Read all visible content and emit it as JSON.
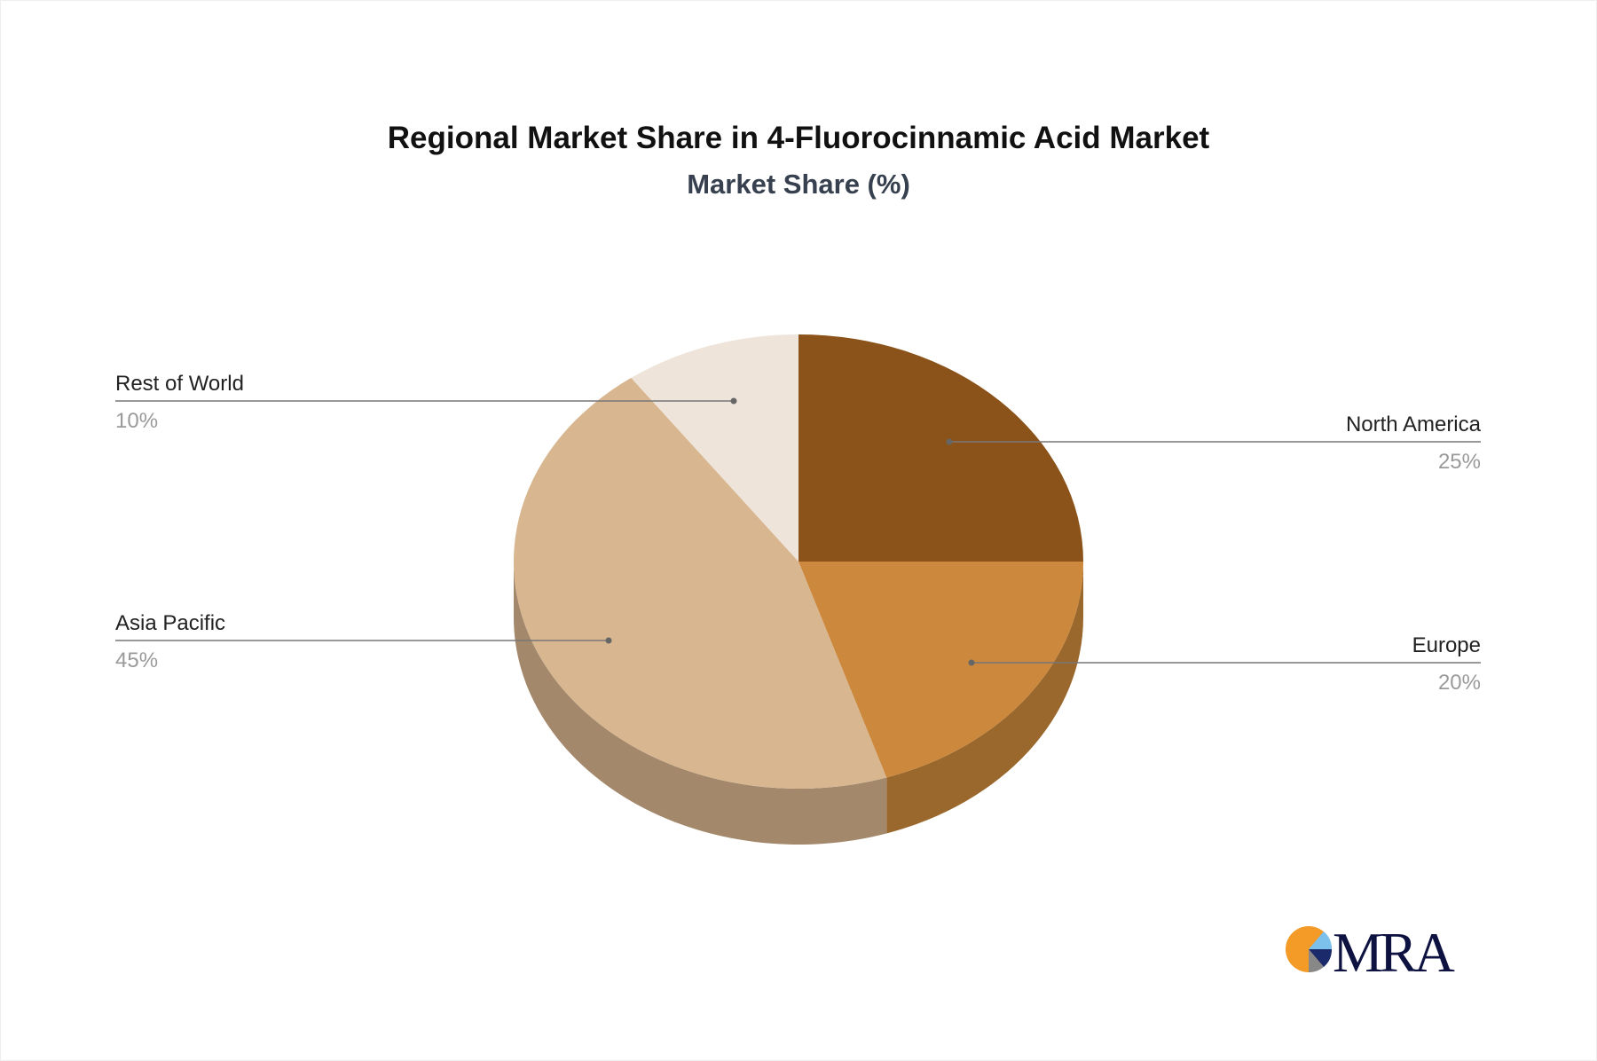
{
  "chart_data": {
    "type": "pie",
    "style": "3d",
    "title": "Regional Market Share in 4-Fluorocinnamic Acid Market",
    "subtitle": "Market Share (%)",
    "slices": [
      {
        "label": "North America",
        "value": 25,
        "display": "25%",
        "color": "#8B531A",
        "side_color": "#6E4214"
      },
      {
        "label": "Europe",
        "value": 20,
        "display": "20%",
        "color": "#CC893D",
        "side_color": "#9A682D"
      },
      {
        "label": "Asia Pacific",
        "value": 45,
        "display": "45%",
        "color": "#D8B690",
        "side_color": "#A3886B"
      },
      {
        "label": "Rest of World",
        "value": 10,
        "display": "10%",
        "color": "#EFE4DA",
        "side_color": "#BDB3A9"
      }
    ],
    "legend": "none"
  },
  "logo": {
    "text": "MRA",
    "colors": [
      "#F39A27",
      "#1B2A6B",
      "#7CC0EC",
      "#888888",
      "#0D1240"
    ]
  }
}
